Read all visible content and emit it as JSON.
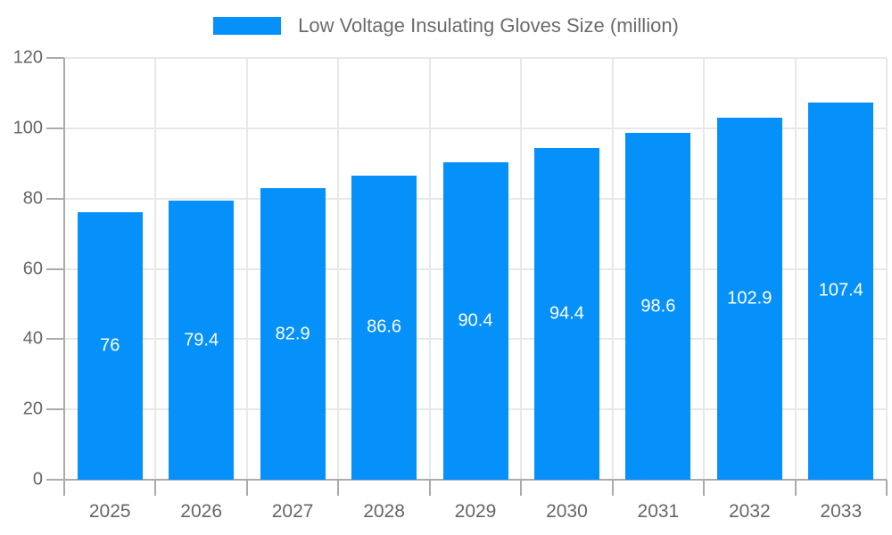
{
  "legend": {
    "label": "Low Voltage Insulating Gloves Size (million)"
  },
  "chart_data": {
    "type": "bar",
    "title": "Low Voltage Insulating Gloves Size (million)",
    "categories": [
      "2025",
      "2026",
      "2027",
      "2028",
      "2029",
      "2030",
      "2031",
      "2032",
      "2033"
    ],
    "series": [
      {
        "name": "Low Voltage Insulating Gloves Size (million)",
        "values": [
          76,
          79.4,
          82.9,
          86.6,
          90.4,
          94.4,
          98.6,
          102.9,
          107.4
        ]
      }
    ],
    "value_labels": [
      "76",
      "79.4",
      "82.9",
      "86.6",
      "90.4",
      "94.4",
      "98.6",
      "102.9",
      "107.4"
    ],
    "xlabel": "",
    "ylabel": "",
    "ylim": [
      0,
      120
    ],
    "yticks": [
      0,
      20,
      40,
      60,
      80,
      100,
      120
    ],
    "grid": "both",
    "legend_position": "top",
    "colors": {
      "bar": "#0590FA",
      "value_label": "#ffffff",
      "axis_line": "#ababab",
      "grid_line": "#e8e8e8",
      "axis_text": "#666666",
      "legend_text": "#6b6b6b",
      "background": "#ffffff"
    }
  }
}
